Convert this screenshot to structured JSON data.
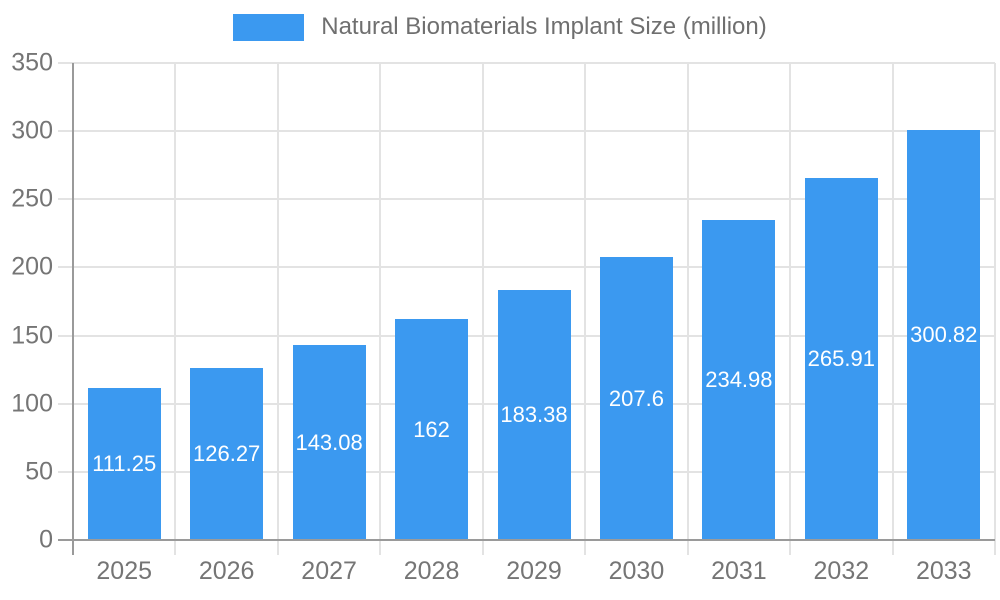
{
  "chart_data": {
    "type": "bar",
    "title": "Natural Biomaterials Implant Size (million)",
    "legend_position": "top",
    "categories": [
      "2025",
      "2026",
      "2027",
      "2028",
      "2029",
      "2030",
      "2031",
      "2032",
      "2033"
    ],
    "values": [
      111.25,
      126.27,
      143.08,
      162,
      183.38,
      207.6,
      234.98,
      265.91,
      300.82
    ],
    "value_labels": [
      "111.25",
      "126.27",
      "143.08",
      "162",
      "183.38",
      "207.6",
      "234.98",
      "265.91",
      "300.82"
    ],
    "xlabel": "",
    "ylabel": "",
    "ylim": [
      0,
      350
    ],
    "ytick_step": 50,
    "grid": true,
    "colors": {
      "bar": "#3B99F0",
      "axis": "#9a9a9a",
      "grid": "#e3e3e3",
      "tick_label": "#757575",
      "bar_label": "#ffffff",
      "legend_text": "#6f6f6f"
    }
  }
}
